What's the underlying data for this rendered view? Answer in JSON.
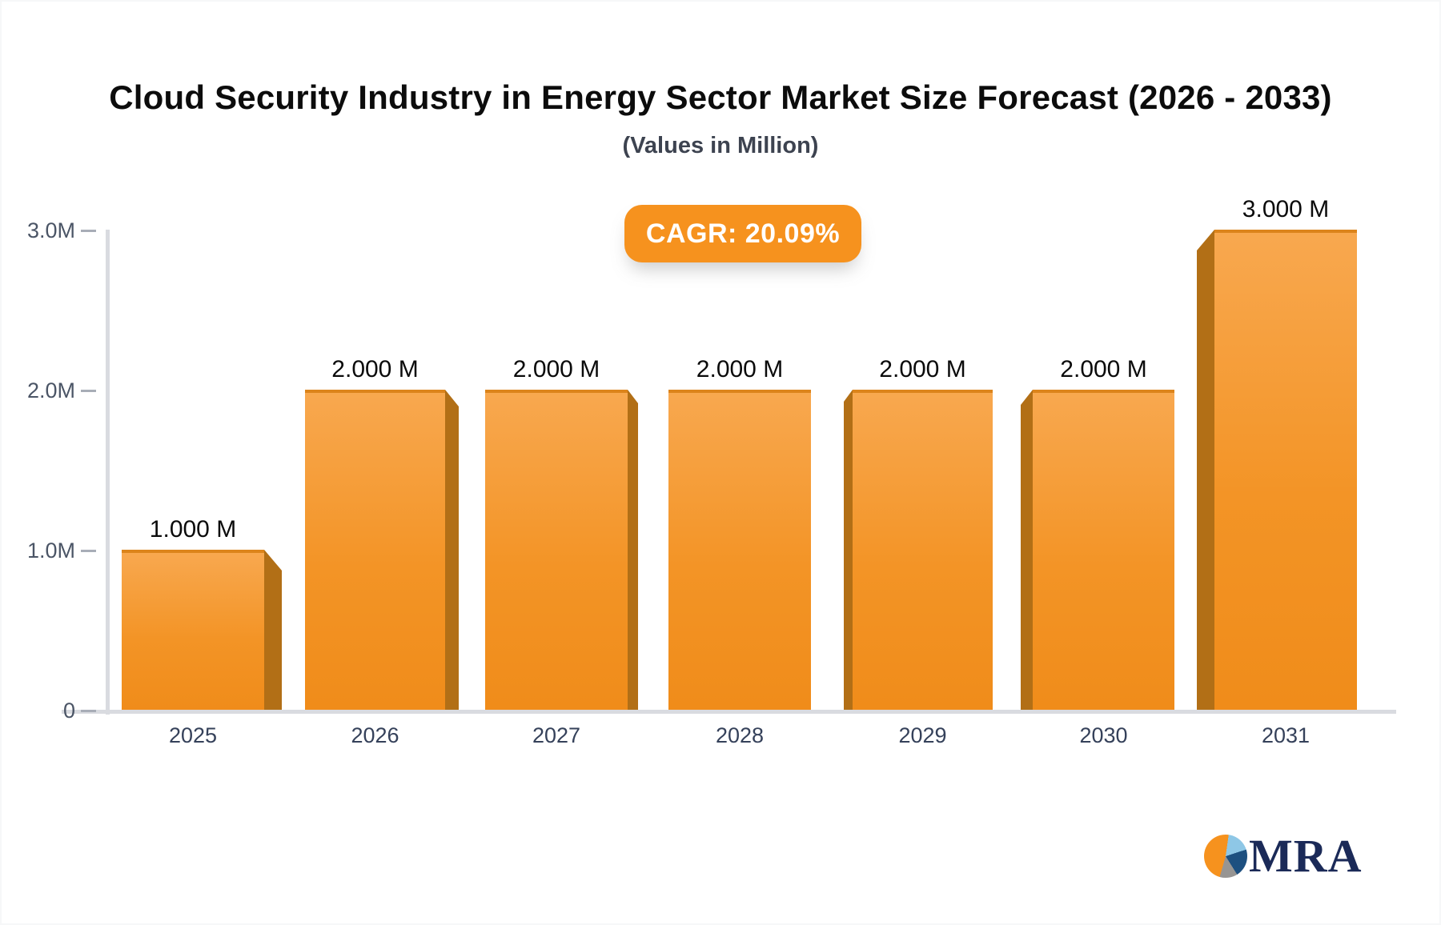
{
  "page": {
    "title": "Cloud Security Industry in Energy Sector Market Size Forecast (2026 - 2033)",
    "subtitle": "(Values in Million)",
    "cagr_label": "CAGR: 20.09%"
  },
  "brand": {
    "wordmark": "MRA",
    "icon": "pie-chart-icon"
  },
  "colors": {
    "bar_face_top": "#f8a84f",
    "bar_face_bottom": "#f08c1a",
    "bar_side_shadow": "#b26f16",
    "bar_top_edge": "#dc841b",
    "badge_bg": "#f6921e",
    "badge_text": "#ffffff",
    "axis_line": "#d9dbe0",
    "tick_label": "#4b5566",
    "year_label": "#35415a",
    "value_label": "#0b0b0b",
    "logo_navy": "#1b2a58",
    "logo_lightblue": "#8ec7e6",
    "logo_darkblue": "#1d5080",
    "logo_gray": "#979593",
    "logo_orange": "#f6921e"
  },
  "chart_data": {
    "type": "bar",
    "title": "Cloud Security Industry in Energy Sector Market Size Forecast (2026 - 2033)",
    "subtitle": "(Values in Million)",
    "unit": "Million",
    "cagr_percent": 20.09,
    "categories": [
      "2025",
      "2026",
      "2027",
      "2028",
      "2029",
      "2030",
      "2031"
    ],
    "values": [
      1.0,
      2.0,
      2.0,
      2.0,
      2.0,
      2.0,
      3.0
    ],
    "value_labels": [
      "1.000 M",
      "2.000 M",
      "2.000 M",
      "2.000 M",
      "2.000 M",
      "2.000 M",
      "3.000 M"
    ],
    "ylim": [
      0,
      3.0
    ],
    "yticks": [
      {
        "value": 0,
        "label": "0"
      },
      {
        "value": 1,
        "label": "1.0M"
      },
      {
        "value": 2,
        "label": "2.0M"
      },
      {
        "value": 3,
        "label": "3.0M"
      }
    ],
    "grid": false,
    "legend": false,
    "bar_style": "3d-perspective-orange"
  }
}
